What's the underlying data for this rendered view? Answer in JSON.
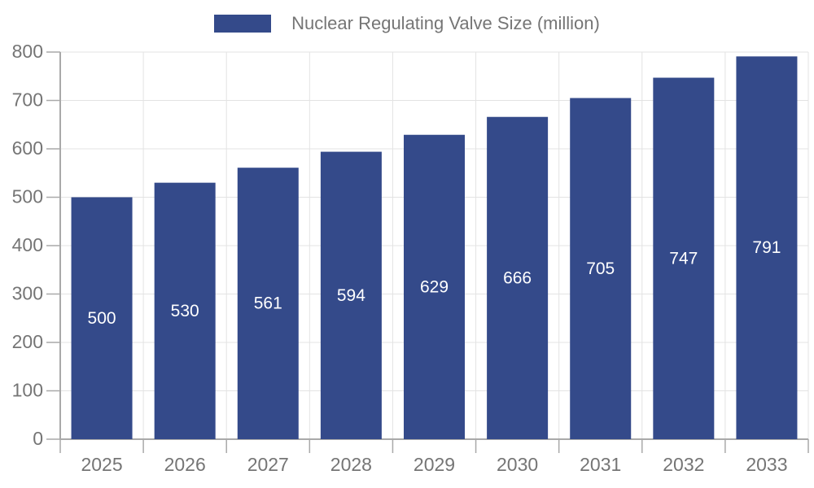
{
  "legend": {
    "label": "Nuclear Regulating Valve Size (million)",
    "swatch_color": "#344a8a",
    "text_color": "#757575"
  },
  "chart_data": {
    "type": "bar",
    "title": "",
    "series_name": "Nuclear Regulating Valve Size (million)",
    "categories": [
      "2025",
      "2026",
      "2027",
      "2028",
      "2029",
      "2030",
      "2031",
      "2032",
      "2033"
    ],
    "values": [
      500,
      530,
      561,
      594,
      629,
      666,
      705,
      747,
      791
    ],
    "xlabel": "",
    "ylabel": "",
    "ylim": [
      0,
      800
    ],
    "yticks": [
      0,
      100,
      200,
      300,
      400,
      500,
      600,
      700,
      800
    ],
    "grid": true,
    "legend_position": "top-center",
    "value_labels_inside_bars": true,
    "colors": {
      "bar": "#344a8a",
      "value_label": "#ffffff",
      "axis_text": "#757575",
      "axis_line": "#a9a9a9",
      "grid_line": "#e3e3e3",
      "background": "#ffffff"
    }
  }
}
